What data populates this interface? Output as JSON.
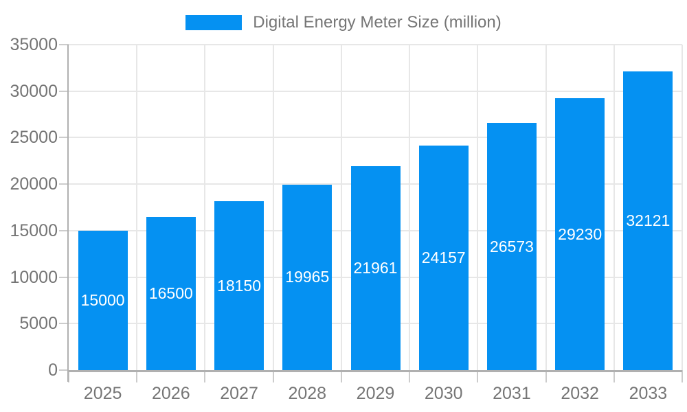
{
  "chart_data": {
    "type": "bar",
    "title": "Digital Energy Meter Size (million)",
    "categories": [
      "2025",
      "2026",
      "2027",
      "2028",
      "2029",
      "2030",
      "2031",
      "2032",
      "2033"
    ],
    "values": [
      15000,
      16500,
      18150,
      19965,
      21961,
      24157,
      26573,
      29230,
      32121
    ],
    "series": [
      {
        "name": "Digital Energy Meter Size (million)",
        "values": [
          15000,
          16500,
          18150,
          19965,
          21961,
          24157,
          26573,
          29230,
          32121
        ]
      }
    ],
    "xlabel": "",
    "ylabel": "",
    "ylim": [
      0,
      35000
    ],
    "ytick_step": 5000,
    "ytick_labels": [
      "0",
      "5000",
      "10000",
      "15000",
      "20000",
      "25000",
      "30000",
      "35000"
    ],
    "grid": "horizontal and vertical",
    "legend_position": "top-center",
    "value_labels": "white, centered inside bars",
    "colors": {
      "bar": "#0591f2",
      "value_label": "#ffffff",
      "axis_text": "#757575",
      "gridline": "#e7e7e7",
      "axis_line": "#b0b0b0",
      "tick": "#cccccc",
      "background": "#ffffff"
    }
  }
}
